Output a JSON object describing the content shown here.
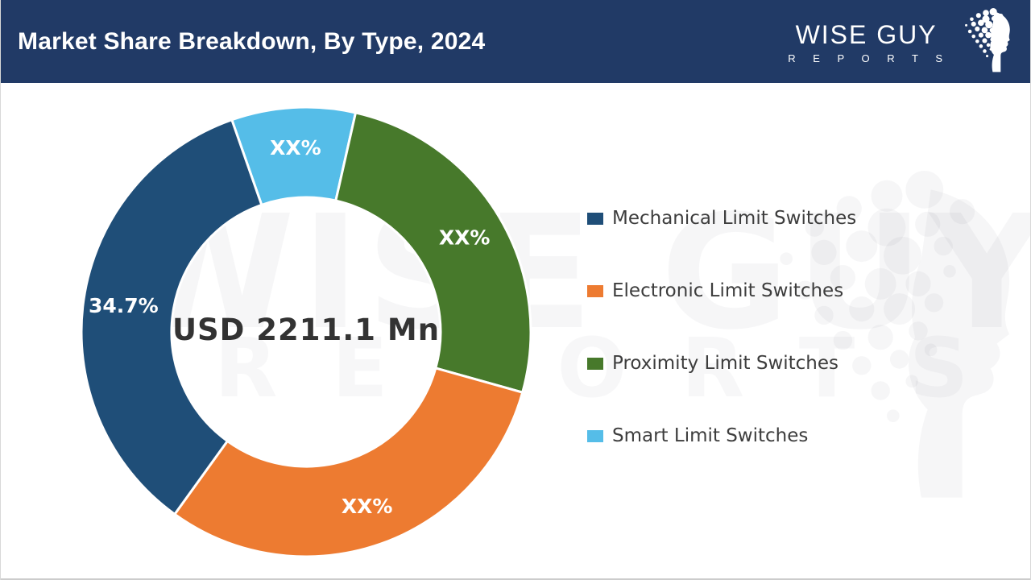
{
  "header": {
    "title": "Market Share Breakdown, By Type, 2024",
    "logo": {
      "line1": "WISE GUY",
      "line2": "R E P O R T S"
    }
  },
  "watermark": {
    "line1": "WISE GUY",
    "line2": "R E P O R T S"
  },
  "chart_data": {
    "type": "pie",
    "subtype": "donut",
    "title": "Market Share Breakdown, By Type, 2024",
    "center_label": "USD 2211.1 Mn",
    "inner_radius_ratio": 0.6,
    "start_angle_deg": -19.3,
    "direction": "clockwise",
    "legend_position": "right",
    "slices": [
      {
        "name": "Smart Limit Switches",
        "value_pct": 8.9,
        "label": "XX%",
        "color": "#55bde8"
      },
      {
        "name": "Proximity Limit Switches",
        "value_pct": 25.8,
        "label": "XX%",
        "color": "#47792b"
      },
      {
        "name": "Electronic Limit Switches",
        "value_pct": 30.6,
        "label": "XX%",
        "color": "#ed7b31"
      },
      {
        "name": "Mechanical Limit Switches",
        "value_pct": 34.7,
        "label": "34.7%",
        "color": "#1f4e78"
      }
    ],
    "legend": {
      "items": [
        {
          "label": "Mechanical Limit Switches",
          "color": "#1f4e78"
        },
        {
          "label": "Electronic Limit Switches",
          "color": "#ed7b31"
        },
        {
          "label": "Proximity Limit Switches",
          "color": "#47792b"
        },
        {
          "label": "Smart Limit Switches",
          "color": "#55bde8"
        }
      ]
    }
  }
}
